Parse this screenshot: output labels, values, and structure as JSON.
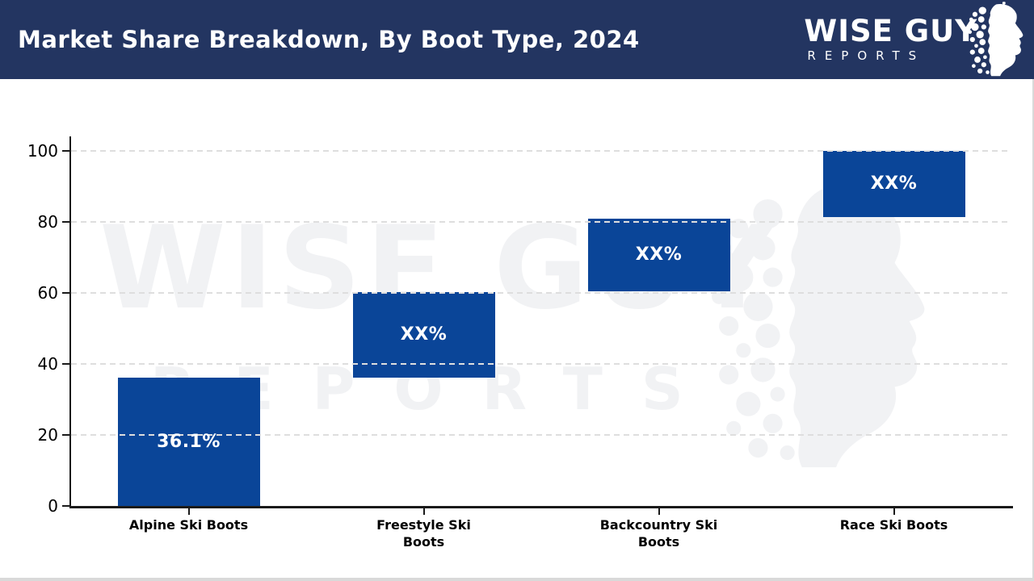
{
  "header": {
    "title": "Market Share Breakdown, By Boot Type, 2024",
    "logo": {
      "line1": "WISE GUY",
      "line2": "REPORTS"
    }
  },
  "watermark": {
    "line1": "WISE GUY",
    "line2": "REPORTS"
  },
  "colors": {
    "header_bg": "#233561",
    "bar": "#0a4598",
    "grid": "#dedede",
    "axis": "#1a1a1a",
    "text": "#000000",
    "bar_label": "#ffffff",
    "watermark": "#f1f2f4",
    "border": "#d9d9d9"
  },
  "chart_data": {
    "type": "bar",
    "variant": "waterfall",
    "title": "Market Share Breakdown, By Boot Type, 2024",
    "categories": [
      "Alpine Ski Boots",
      "Freestyle Ski Boots",
      "Backcountry Ski Boots",
      "Race Ski Boots"
    ],
    "segments": [
      {
        "category_lines": [
          "Alpine Ski Boots"
        ],
        "start": 0,
        "end": 36.1,
        "label": "36.1%"
      },
      {
        "category_lines": [
          "Freestyle Ski",
          "Boots"
        ],
        "start": 36.1,
        "end": 60.2,
        "label": "XX%"
      },
      {
        "category_lines": [
          "Backcountry Ski",
          "Boots"
        ],
        "start": 60.5,
        "end": 81.0,
        "label": "XX%"
      },
      {
        "category_lines": [
          "Race Ski Boots"
        ],
        "start": 81.3,
        "end": 100,
        "label": "XX%"
      }
    ],
    "xlabel": "",
    "ylabel": "",
    "ylim": [
      0,
      100
    ],
    "yticks": [
      0,
      20,
      40,
      60,
      80,
      100
    ],
    "grid": {
      "show": true,
      "style": "dashed",
      "axis": "y",
      "over_bars": true
    },
    "legend": {
      "show": false
    },
    "bar_color": "#0a4598",
    "value_label_color": "#ffffff"
  }
}
